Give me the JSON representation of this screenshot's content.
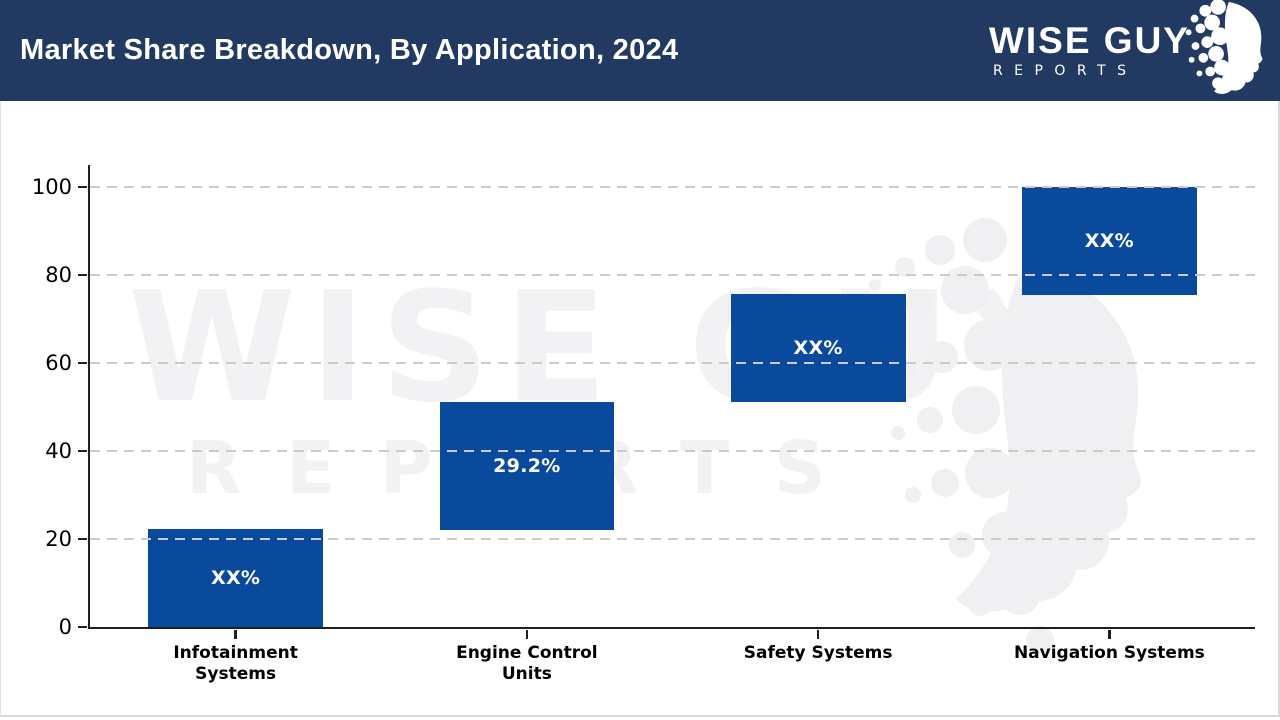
{
  "header": {
    "title": "Market Share Breakdown, By Application, 2024",
    "logo": {
      "line1": "WISE GUY",
      "line2": "REPORTS"
    }
  },
  "watermark": {
    "line1": "WISE GUY",
    "line2": "REPORTS"
  },
  "colors": {
    "header_bg": "#223a62",
    "bar": "#0a4a9d",
    "grid": "#cbcbcb",
    "axis": "#1f1f1f",
    "bar_label": "#ffffff",
    "watermark": "#f2f2f5"
  },
  "chart_data": {
    "type": "bar",
    "subtype": "floating-waterfall",
    "title": "Market Share Breakdown, By Application, 2024",
    "xlabel": "",
    "ylabel": "",
    "grid": "horizontal-dashed",
    "legend": "none",
    "ylim": [
      0,
      105
    ],
    "yticks": [
      0,
      20,
      40,
      60,
      80,
      100
    ],
    "categories": [
      "Infotainment Systems",
      "Engine Control Units",
      "Safety Systems",
      "Navigation Systems"
    ],
    "xtick_lines": [
      [
        "Infotainment",
        "Systems"
      ],
      [
        "Engine Control",
        "Units"
      ],
      [
        "Safety Systems"
      ],
      [
        "Navigation Systems"
      ]
    ],
    "bars": [
      {
        "category": "Infotainment Systems",
        "start": 0,
        "end": 22.3,
        "label": "XX%"
      },
      {
        "category": "Engine Control Units",
        "start": 22,
        "end": 51.2,
        "label": "29.2%"
      },
      {
        "category": "Safety Systems",
        "start": 51.2,
        "end": 75.6,
        "label": "XX%"
      },
      {
        "category": "Navigation Systems",
        "start": 75.5,
        "end": 100,
        "label": "XX%"
      }
    ]
  }
}
